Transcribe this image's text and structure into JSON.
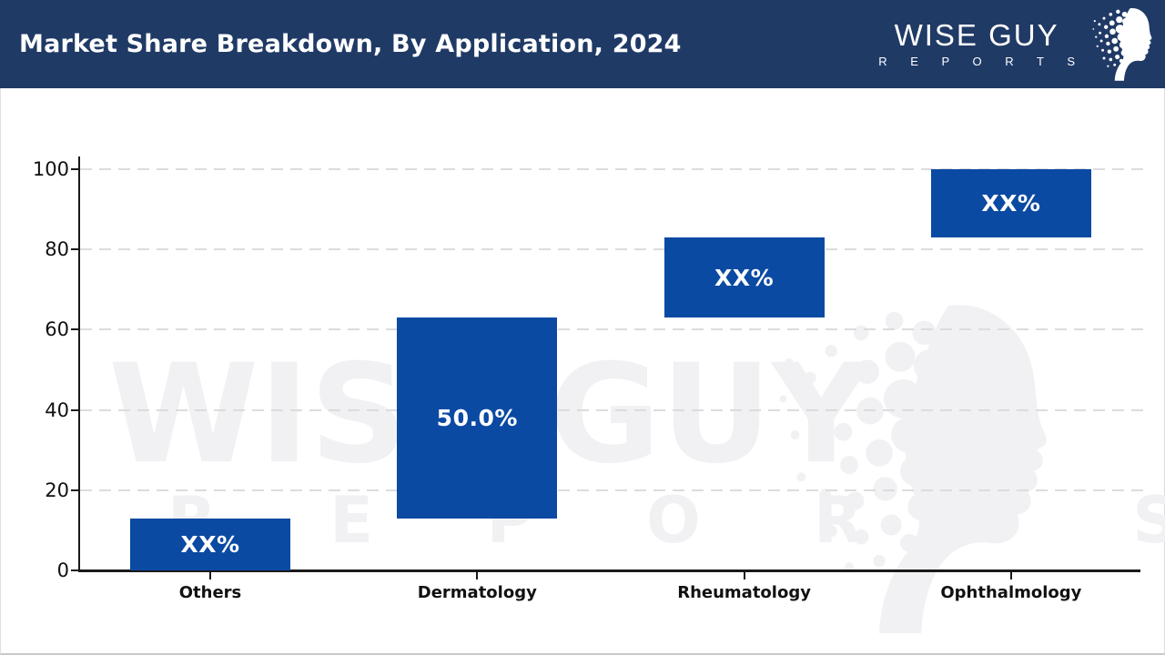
{
  "header": {
    "title": "Market Share Breakdown, By Application, 2024",
    "bg_color": "#203A66",
    "logo": {
      "line1": "WISE GUY",
      "line2": "R E P O R T S"
    }
  },
  "watermark": {
    "line1": "WISE GUY",
    "line2": "R E P O R T S",
    "color": "#F1F1F4"
  },
  "chart_data": {
    "type": "bar",
    "subtype": "waterfall",
    "title": "Market Share Breakdown, By Application, 2024",
    "categories": [
      "Others",
      "Dermatology",
      "Rheumatology",
      "Ophthalmology"
    ],
    "segments": [
      {
        "category": "Others",
        "start": 0,
        "end": 13,
        "label": "XX%"
      },
      {
        "category": "Dermatology",
        "start": 13,
        "end": 63,
        "label": "50.0%"
      },
      {
        "category": "Rheumatology",
        "start": 63,
        "end": 83,
        "label": "XX%"
      },
      {
        "category": "Ophthalmology",
        "start": 83,
        "end": 100,
        "label": "XX%"
      }
    ],
    "yticks": [
      0,
      20,
      40,
      60,
      80,
      100
    ],
    "ylim": [
      0,
      103
    ],
    "xlabel": "",
    "ylabel": "",
    "grid": "horizontal-dashed",
    "grid_color": "#dcdcdc",
    "axis_color": "#1a1a1a",
    "bar_color": "#0B4AA2",
    "label_color": "#FFFFFF",
    "legend": "none"
  }
}
